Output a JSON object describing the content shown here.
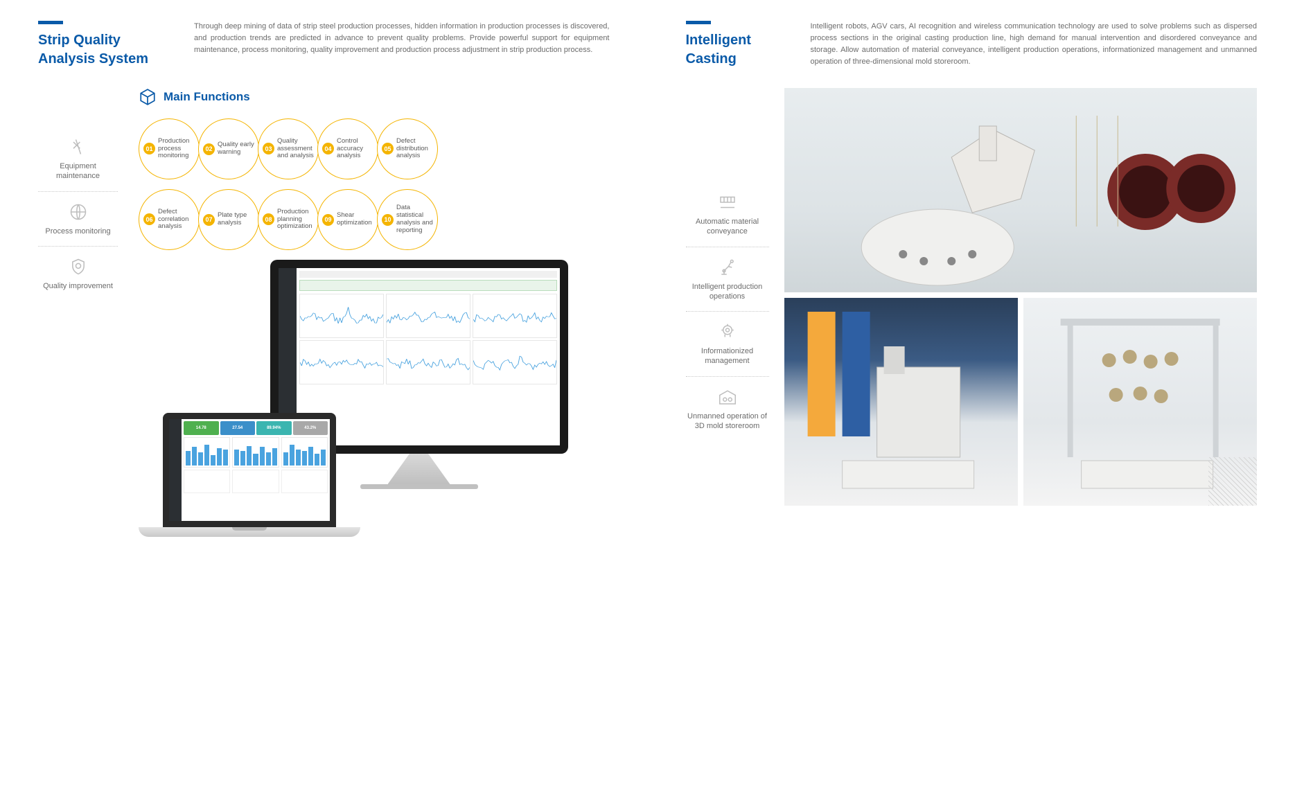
{
  "colors": {
    "primary_blue": "#0a5aa8",
    "accent_yellow": "#f4b400",
    "text_gray": "#6b6b6b",
    "icon_gray": "#bdbdbd",
    "chart_line": "#4aa3df"
  },
  "left": {
    "title_line1": "Strip Quality",
    "title_line2": "Analysis System",
    "description": "Through deep mining of data of strip steel production processes, hidden information in production processes is discovered, and production trends are predicted in advance to prevent quality problems. Provide powerful support for equipment maintenance, process monitoring, quality improvement and production process adjustment in strip production process.",
    "side_features": [
      {
        "icon": "wrench-icon",
        "label": "Equipment maintenance"
      },
      {
        "icon": "globe-icon",
        "label": "Process monitoring"
      },
      {
        "icon": "shield-icon",
        "label": "Quality improvement"
      }
    ],
    "main_functions_title": "Main Functions",
    "circles_row1": [
      {
        "num": "01",
        "label": "Production process monitoring"
      },
      {
        "num": "02",
        "label": "Quality early warning"
      },
      {
        "num": "03",
        "label": "Quality assessment and analysis"
      },
      {
        "num": "04",
        "label": "Control accuracy analysis"
      },
      {
        "num": "05",
        "label": "Defect distribution analysis"
      }
    ],
    "circles_row2": [
      {
        "num": "06",
        "label": "Defect correlation analysis"
      },
      {
        "num": "07",
        "label": "Plate type analysis"
      },
      {
        "num": "08",
        "label": "Production planning optimization"
      },
      {
        "num": "09",
        "label": "Shear optimization"
      },
      {
        "num": "10",
        "label": "Data statistical analysis and reporting"
      }
    ],
    "laptop_kpis": [
      {
        "value": "14.78",
        "color": "#4fb04f"
      },
      {
        "value": "27.54",
        "color": "#3b8fc9"
      },
      {
        "value": "89.94%",
        "color": "#3bb5b0"
      },
      {
        "value": "43.2%",
        "color": "#a8a8a8"
      }
    ],
    "laptop_bar_heights_pct": [
      [
        55,
        70,
        50,
        80,
        40,
        65,
        60
      ],
      [
        60,
        55,
        75,
        45,
        70,
        50,
        65
      ],
      [
        50,
        80,
        60,
        55,
        70,
        45,
        60
      ]
    ]
  },
  "right": {
    "title_line1": "Intelligent",
    "title_line2": "Casting",
    "description": "Intelligent robots, AGV cars, AI recognition and wireless communication technology are used to solve problems such as dispersed process sections in the original casting production line, high demand for manual intervention and disordered conveyance and storage. Allow automation of material conveyance, intelligent production operations, informationized management and unmanned operation of three-dimensional mold storeroom.",
    "side_features": [
      {
        "icon": "conveyor-icon",
        "label": "Automatic material conveyance"
      },
      {
        "icon": "robot-arm-icon",
        "label": "Intelligent production operations"
      },
      {
        "icon": "brain-icon",
        "label": "Informationized management"
      },
      {
        "icon": "warehouse-icon",
        "label": "Unmanned operation of 3D mold storeroom"
      }
    ]
  }
}
